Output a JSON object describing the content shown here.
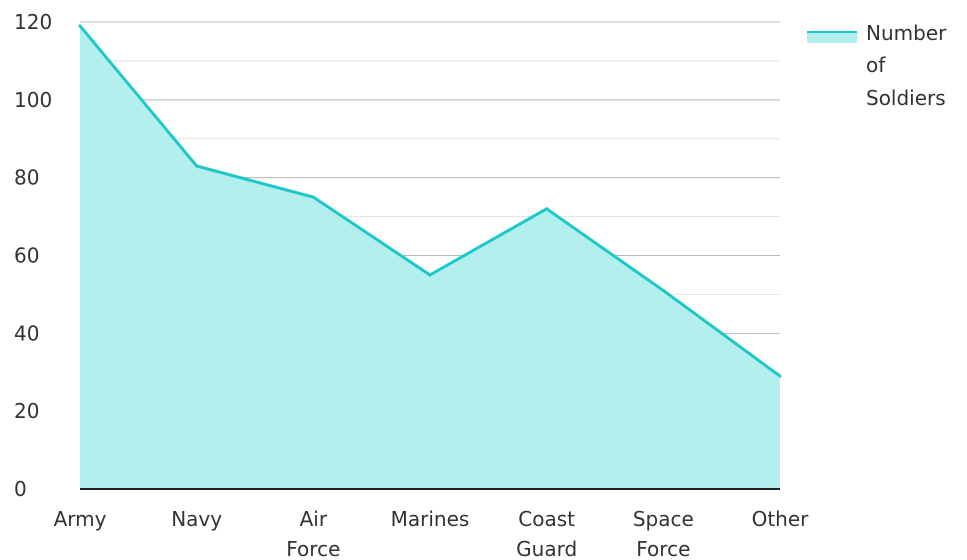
{
  "chart_data": {
    "type": "area",
    "categories": [
      "Army",
      "Navy",
      "Air Force",
      "Marines",
      "Coast Guard",
      "Space Force",
      "Other"
    ],
    "category_lines": [
      [
        "Army"
      ],
      [
        "Navy"
      ],
      [
        "Air",
        "Force"
      ],
      [
        "Marines"
      ],
      [
        "Coast",
        "Guard"
      ],
      [
        "Space",
        "Force"
      ],
      [
        "Other"
      ]
    ],
    "series": [
      {
        "name": "Number of Soldiers",
        "values": [
          119,
          83,
          75,
          55,
          72,
          51,
          29
        ]
      }
    ],
    "legend": {
      "placement": "top-right",
      "lines": [
        "Number",
        "of",
        "Soldiers"
      ]
    },
    "ylim": [
      0,
      120
    ],
    "yticks": [
      0,
      20,
      40,
      60,
      80,
      100,
      120
    ],
    "minor_grid": [
      10,
      30,
      50,
      70,
      90,
      110
    ],
    "grid": true,
    "colors": {
      "line": "#1ec8c8",
      "fill": "#b2efed",
      "major_grid": "#b8b8b8",
      "minor_grid": "#e2e2e2",
      "axis": "#222222"
    }
  }
}
